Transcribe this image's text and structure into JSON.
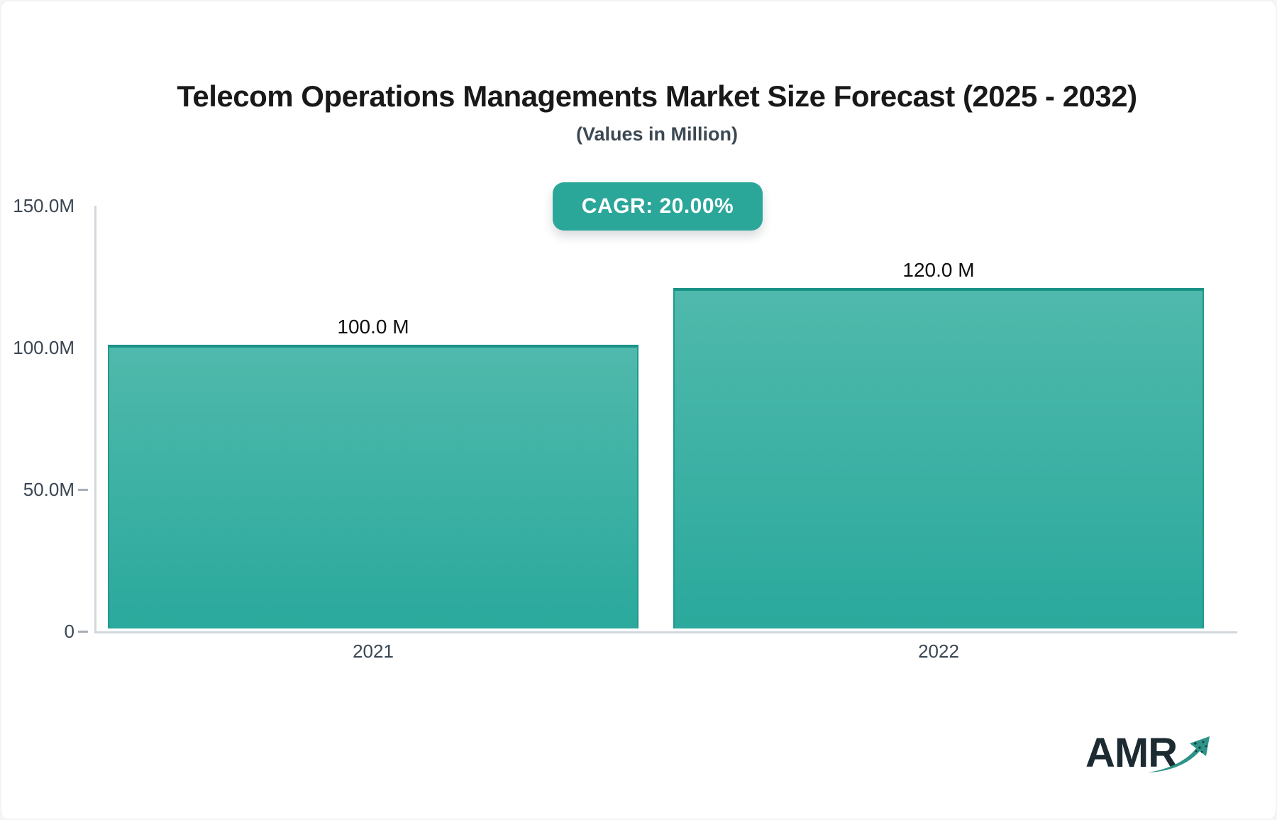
{
  "header": {
    "title": "Telecom Operations Managements Market Size Forecast (2025 - 2032)",
    "subtitle": "(Values in Million)",
    "cagr_label": "CAGR: 20.00%"
  },
  "chart_data": {
    "type": "bar",
    "title": "Telecom Operations Managements Market Size Forecast (2025 - 2032)",
    "subtitle": "(Values in Million)",
    "cagr_percent": 20.0,
    "unit": "Million",
    "categories": [
      "2021",
      "2022"
    ],
    "values": [
      100.0,
      120.0
    ],
    "value_labels": [
      "100.0 M",
      "120.0 M"
    ],
    "xlabel": "",
    "ylabel": "",
    "ylim": [
      0,
      150
    ],
    "y_ticks": [
      {
        "label": "150.0M",
        "value": 150
      },
      {
        "label": "100.0M",
        "value": 100
      },
      {
        "label": "50.0M",
        "value": 50
      },
      {
        "label": "0",
        "value": 0
      }
    ],
    "grid": false,
    "legend": false,
    "bar_gradient_top": "#4FB9AC",
    "bar_gradient_bottom": "#2AA99C",
    "bar_border": "#1B9287"
  },
  "colors": {
    "accent_teal": "#2BA79A",
    "axis_line": "#D3D7DC",
    "tick_text": "#3A4653",
    "title_text": "#191919",
    "value_text": "#0E0E0E",
    "logo_dark": "#1C2B31",
    "logo_arrow": "#2E9488"
  },
  "logo": {
    "text": "AMR",
    "icon": "growth-arrow-icon"
  }
}
